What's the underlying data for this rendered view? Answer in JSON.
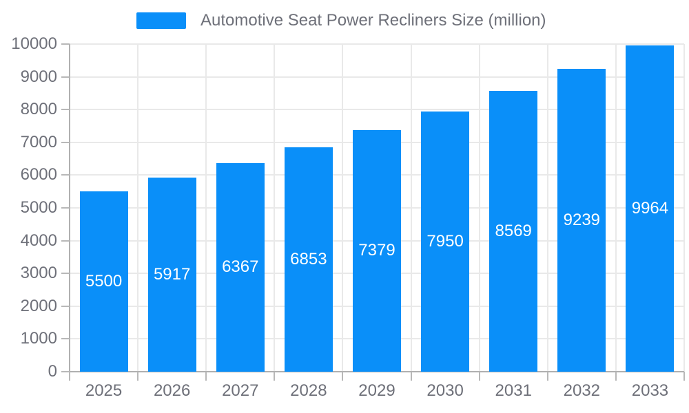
{
  "legend": {
    "series_label": "Automotive Seat Power Recliners Size (million)"
  },
  "chart_data": {
    "type": "bar",
    "title": "Automotive Seat Power Recliners Size (million)",
    "categories": [
      "2025",
      "2026",
      "2027",
      "2028",
      "2029",
      "2030",
      "2031",
      "2032",
      "2033"
    ],
    "values": [
      5500,
      5917,
      6367,
      6853,
      7379,
      7950,
      8569,
      9239,
      9964
    ],
    "xlabel": "",
    "ylabel": "",
    "ylim": [
      0,
      10000
    ],
    "ytick_interval": 1000,
    "ytick_labels": [
      "0",
      "1000",
      "2000",
      "3000",
      "4000",
      "5000",
      "6000",
      "7000",
      "8000",
      "9000",
      "10000"
    ],
    "grid": true,
    "legend_position": "top",
    "value_labels": "centered-inside-bars",
    "colors": {
      "bar": "#0a8ff9",
      "axis_label": "#6e7079",
      "grid_line": "#e9e9e9",
      "axis_line": "#b0b0b0",
      "tick": "#b8b8b8",
      "value_label": "#ffffff",
      "legend_text": "#6e7079"
    }
  }
}
